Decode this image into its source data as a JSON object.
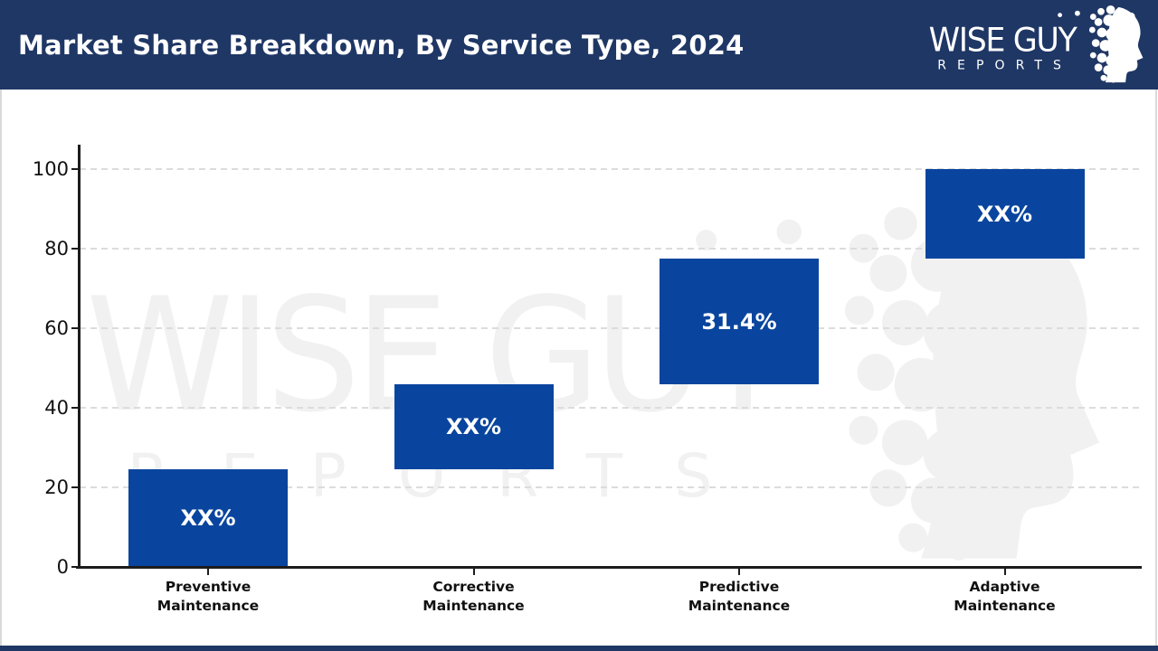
{
  "header": {
    "title": "Market Share Breakdown, By Service Type, 2024",
    "logo": {
      "brand": "WISE GUY",
      "sub": "REPORTS"
    }
  },
  "watermark": {
    "brand": "WISE GUY",
    "sub": "REPORTS"
  },
  "chart_data": {
    "type": "bar",
    "subtype": "floating-waterfall",
    "title": "Market Share Breakdown, By Service Type, 2024",
    "categories": [
      [
        "Preventive",
        "Maintenance"
      ],
      [
        "Corrective",
        "Maintenance"
      ],
      [
        "Predictive",
        "Maintenance"
      ],
      [
        "Adaptive",
        "Maintenance"
      ]
    ],
    "bars": [
      {
        "category": "Preventive Maintenance",
        "label": "XX%",
        "start": 0,
        "end": 24.6
      },
      {
        "category": "Corrective Maintenance",
        "label": "XX%",
        "start": 24.6,
        "end": 46.0
      },
      {
        "category": "Predictive Maintenance",
        "label": "31.4%",
        "start": 46.0,
        "end": 77.4
      },
      {
        "category": "Adaptive Maintenance",
        "label": "XX%",
        "start": 77.4,
        "end": 100.0
      }
    ],
    "xlabel": "",
    "ylabel": "",
    "yticks": [
      0,
      20,
      40,
      60,
      80,
      100
    ],
    "ylim": [
      0,
      107
    ],
    "grid": "horizontal-dashed",
    "legend": "none",
    "colors": {
      "bar": "#09459e",
      "bar_label": "#ffffff",
      "grid": "#dcdcdc",
      "axis": "#1c1c1c",
      "header_bg": "#1f3765",
      "watermark": "#f1f1f1"
    }
  }
}
